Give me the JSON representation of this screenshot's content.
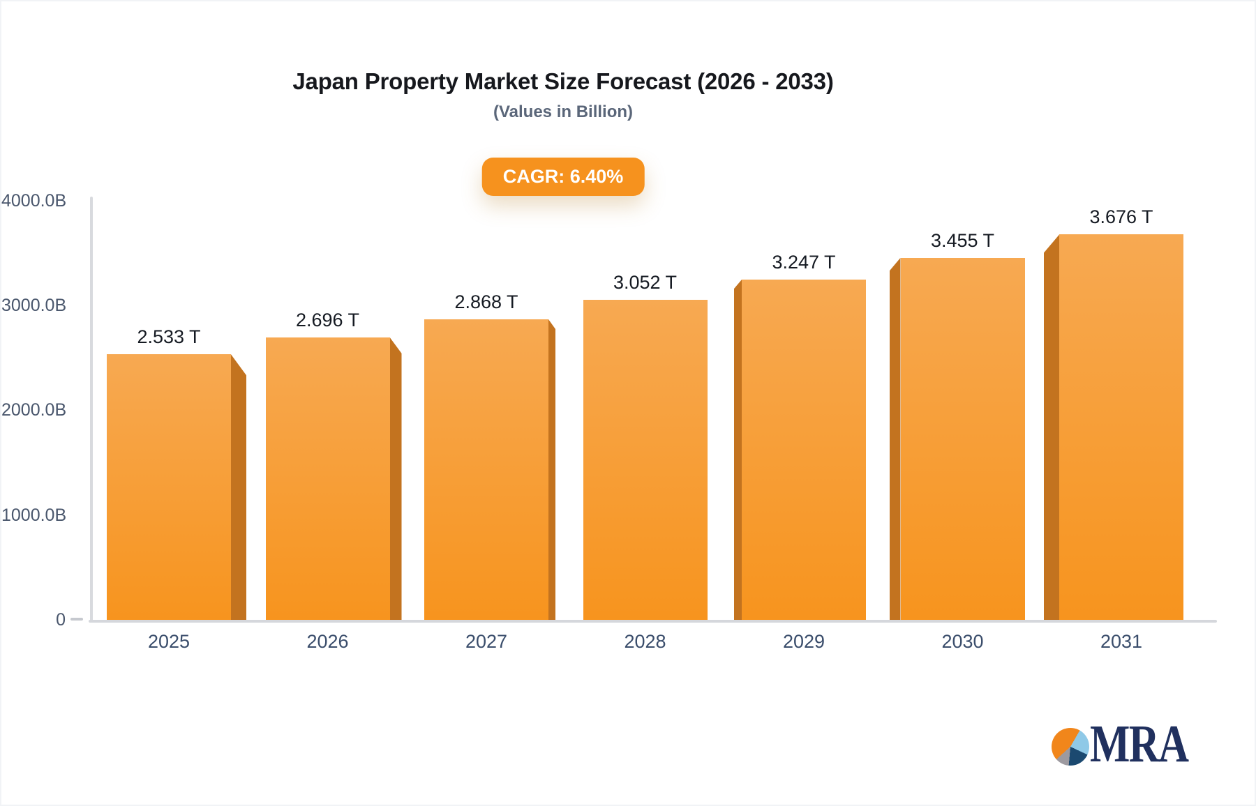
{
  "chart_data": {
    "type": "bar",
    "title": "Japan Property Market Size Forecast (2026 - 2033)",
    "subtitle": "(Values in Billion)",
    "annotation": "CAGR: 6.40%",
    "categories": [
      "2025",
      "2026",
      "2027",
      "2028",
      "2029",
      "2030",
      "2031"
    ],
    "values": [
      2533,
      2696,
      2868,
      3052,
      3247,
      3455,
      3676
    ],
    "bar_labels": [
      "2.533 T",
      "2.696 T",
      "2.868 T",
      "3.052 T",
      "3.247 T",
      "3.455 T",
      "3.676 T"
    ],
    "y_axis_ticks": [
      {
        "label": "4000.0B",
        "value": 4000
      },
      {
        "label": "3000.0B",
        "value": 3000
      },
      {
        "label": "2000.0B",
        "value": 2000
      },
      {
        "label": "1000.0B",
        "value": 1000
      },
      {
        "label": "0",
        "value": 0
      }
    ],
    "ylim": [
      0,
      4000
    ],
    "xlabel": "",
    "ylabel": "",
    "grid": "off",
    "legend": "none",
    "colors": {
      "bar_top": "#f7a952",
      "bar_bottom": "#f7941e",
      "bar_side": "#c3731f",
      "badge": "#f6921e",
      "axis": "#d8dade"
    }
  },
  "branding": {
    "logo_text": "MRA",
    "logo_navy": "#20305e",
    "pie_orange": "#f1861b",
    "pie_lightblue": "#8fc9e7",
    "pie_navy": "#1b4970",
    "pie_gray": "#9d9aa0"
  }
}
